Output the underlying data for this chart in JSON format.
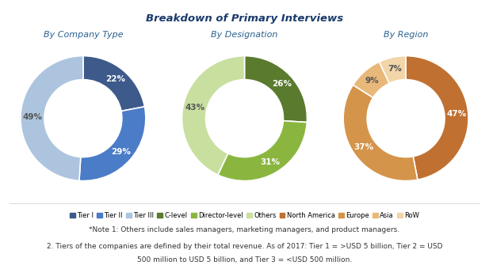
{
  "title": "Breakdown of Primary Interviews",
  "charts": [
    {
      "label": "By Company Type",
      "values": [
        22,
        29,
        49
      ],
      "labels": [
        "22%",
        "29%",
        "49%"
      ],
      "colors": [
        "#3d5a8a",
        "#4a7cc7",
        "#adc4df"
      ],
      "legend_labels": [
        "Tier I",
        "Tier II",
        "Tier III"
      ],
      "label_colors": [
        "white",
        "white",
        "#555555"
      ],
      "label_r": [
        0.72,
        0.72,
        0.72
      ]
    },
    {
      "label": "By Designation",
      "values": [
        26,
        31,
        43
      ],
      "labels": [
        "26%",
        "31%",
        "43%"
      ],
      "colors": [
        "#5a7a2e",
        "#8ab640",
        "#c8dfa0"
      ],
      "legend_labels": [
        "C-level",
        "Director-level",
        "Others"
      ],
      "label_colors": [
        "white",
        "white",
        "#555555"
      ],
      "label_r": [
        0.72,
        0.72,
        0.72
      ]
    },
    {
      "label": "By Region",
      "values": [
        47,
        37,
        9,
        7
      ],
      "labels": [
        "47%",
        "37%",
        "9%",
        "7%"
      ],
      "colors": [
        "#c07030",
        "#d4944a",
        "#e8b87a",
        "#f2d5a8"
      ],
      "legend_labels": [
        "North America",
        "Europe",
        "Asia",
        "RoW"
      ],
      "label_colors": [
        "white",
        "white",
        "#555555",
        "#555555"
      ],
      "label_r": [
        0.72,
        0.72,
        0.72,
        0.72
      ]
    }
  ],
  "note_line1": "*Note 1: Others include sales managers, marketing managers, and product managers.",
  "note_line2": "2. Tiers of the companies are defined by their total revenue. As of 2017: Tier 1 = >USD 5 billion, Tier 2 = USD",
  "note_line3": "500 million to USD 5 billion, and Tier 3 = <USD 500 million.",
  "background_color": "#ffffff",
  "title_color": "#1a3a6b",
  "subtitle_color": "#2a6090",
  "label_color": "#333333",
  "donut_width": 0.38
}
